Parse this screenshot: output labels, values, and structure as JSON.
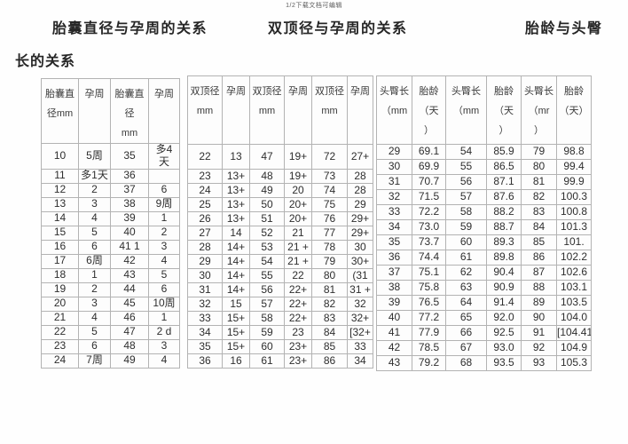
{
  "watermark": "1/2下载文档可编辑",
  "headings": {
    "sac": "胎囊直径与孕周的关系",
    "bpd": "双顶径与孕周的关系",
    "crl_line1": "胎龄与头臀",
    "crl_line2": "长的关系"
  },
  "tables": {
    "sac": {
      "title": "胎囊直径与孕周的关系",
      "headers": [
        "胎囊直\n径mm",
        "孕周",
        "胎囊直\n径\nmm",
        "孕周"
      ],
      "rows": [
        [
          "10",
          "5周",
          "35",
          "多4\n天"
        ],
        [
          "11",
          "多1天",
          "36",
          ""
        ],
        [
          "12",
          "2",
          "37",
          "6"
        ],
        [
          "13",
          "3",
          "38",
          "9周"
        ],
        [
          "14",
          "4",
          "39",
          "1"
        ],
        [
          "15",
          "5",
          "40",
          "2"
        ],
        [
          "16",
          "6",
          "41 1",
          "3"
        ],
        [
          "17",
          "6周",
          "42",
          "4"
        ],
        [
          "18",
          "1",
          "43",
          "5"
        ],
        [
          "19",
          "2",
          "44",
          "6"
        ],
        [
          "20",
          "3",
          "45",
          "10周"
        ],
        [
          "21",
          "4",
          "46",
          "1"
        ],
        [
          "22",
          "5",
          "47",
          "2 d"
        ],
        [
          "23",
          "6",
          "48",
          "3"
        ],
        [
          "24",
          "7周",
          "49",
          "4"
        ]
      ]
    },
    "bpd": {
      "title": "双顶径与孕周的关系",
      "headers": [
        "双顶径\nmm",
        "孕周",
        "双顶径\nmm",
        "孕周",
        "双顶径\nmm",
        "孕周"
      ],
      "rows": [
        [
          "22",
          "13",
          "47",
          "19+",
          "72",
          "27+"
        ],
        [
          "23",
          "13+",
          "48",
          "19+",
          "73",
          "28"
        ],
        [
          "24",
          "13+",
          "49",
          "20",
          "74",
          "28"
        ],
        [
          "25",
          "13+",
          "50",
          "20+",
          "75",
          "29"
        ],
        [
          "26",
          "13+",
          "51",
          "20+",
          "76",
          "29+"
        ],
        [
          "27",
          "14",
          "52",
          "21",
          "77",
          "29+"
        ],
        [
          "28",
          "14+",
          "53",
          "21 +",
          "78",
          "30"
        ],
        [
          "29",
          "14+",
          "54",
          "21 +",
          "79",
          "30+"
        ],
        [
          "30",
          "14+",
          "55",
          "22",
          "80",
          "(31"
        ],
        [
          "31",
          "14+",
          "56",
          "22+",
          "81",
          "31 +"
        ],
        [
          "32",
          "15",
          "57",
          "22+",
          "82",
          "32"
        ],
        [
          "33",
          "15+",
          "58",
          "22+",
          "83",
          "32+"
        ],
        [
          "34",
          "15+",
          "59",
          "23",
          "84",
          "[32+"
        ],
        [
          "35",
          "15+",
          "60",
          "23+",
          "85",
          "33"
        ],
        [
          "36",
          "16",
          "61",
          "23+",
          "86",
          "34"
        ]
      ]
    },
    "crl": {
      "title": "胎龄与头臀长的关系",
      "headers": [
        "头臀长\n（mm",
        "胎龄\n（天\n）",
        "头臀长\n（mm",
        "胎龄\n（天\n）",
        "头臀长\n（mr\n）",
        "胎龄\n（天）"
      ],
      "rows": [
        [
          "29",
          "69.1",
          "54",
          "85.9",
          "79",
          "98.8"
        ],
        [
          "30",
          "69.9",
          "55",
          "86.5",
          "80",
          "99.4"
        ],
        [
          "31",
          "70.7",
          "56",
          "87.1",
          "81",
          "99.9"
        ],
        [
          "32",
          "71.5",
          "57",
          "87.6",
          "82",
          "100.3"
        ],
        [
          "33",
          "72.2",
          "58",
          "88.2",
          "83",
          "100.8"
        ],
        [
          "34",
          "73.0",
          "59",
          "88.7",
          "84",
          "101.3"
        ],
        [
          "35",
          "73.7",
          "60",
          "89.3",
          "85",
          "101."
        ],
        [
          "36",
          "74.4",
          "61",
          "89.8",
          "86",
          "102.2"
        ],
        [
          "37",
          "75.1",
          "62",
          "90.4",
          "87",
          "102.6"
        ],
        [
          "38",
          "75.8",
          "63",
          "90.9",
          "88",
          "103.1"
        ],
        [
          "39",
          "76.5",
          "64",
          "91.4",
          "89",
          "103.5"
        ],
        [
          "40",
          "77.2",
          "65",
          "92.0",
          "90",
          "104.0"
        ],
        [
          "41",
          "77.9",
          "66",
          "92.5",
          "91",
          "[104.41"
        ],
        [
          "42",
          "78.5",
          "67",
          "93.0",
          "92",
          "104.9"
        ],
        [
          "43",
          "79.2",
          "68",
          "93.5",
          "93",
          "105.3"
        ]
      ]
    }
  },
  "colors": {
    "background": "#ffffff",
    "text": "#2e2e2e",
    "border": "#b3b3b3"
  }
}
